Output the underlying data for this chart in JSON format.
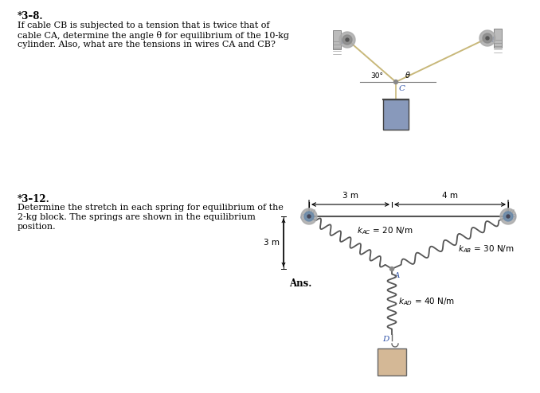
{
  "background_color": "#ffffff",
  "p1_number": "*3–8.",
  "p1_lines": [
    "If cable CB is subjected to a tension that is twice that of",
    "cable CA, determine the angle θ for equilibrium of the 10-kg",
    "cylinder. Also, what are the tensions in wires CA and CB?"
  ],
  "p2_number": "*3–12.",
  "p2_lines": [
    "Determine the stretch in each spring for equilibrium of the",
    "2-kg block. The springs are shown in the equilibrium",
    "position."
  ],
  "num_fs": 8.5,
  "body_fs": 8.0,
  "cable_color": "#c8b87a",
  "pulley_outer": "#aaaaaa",
  "pulley_inner": "#888888",
  "cyl_color": "#8899bb",
  "spring_color": "#555555",
  "dim_color": "#333333",
  "label_color": "#3355aa",
  "ans_color": "#000000"
}
